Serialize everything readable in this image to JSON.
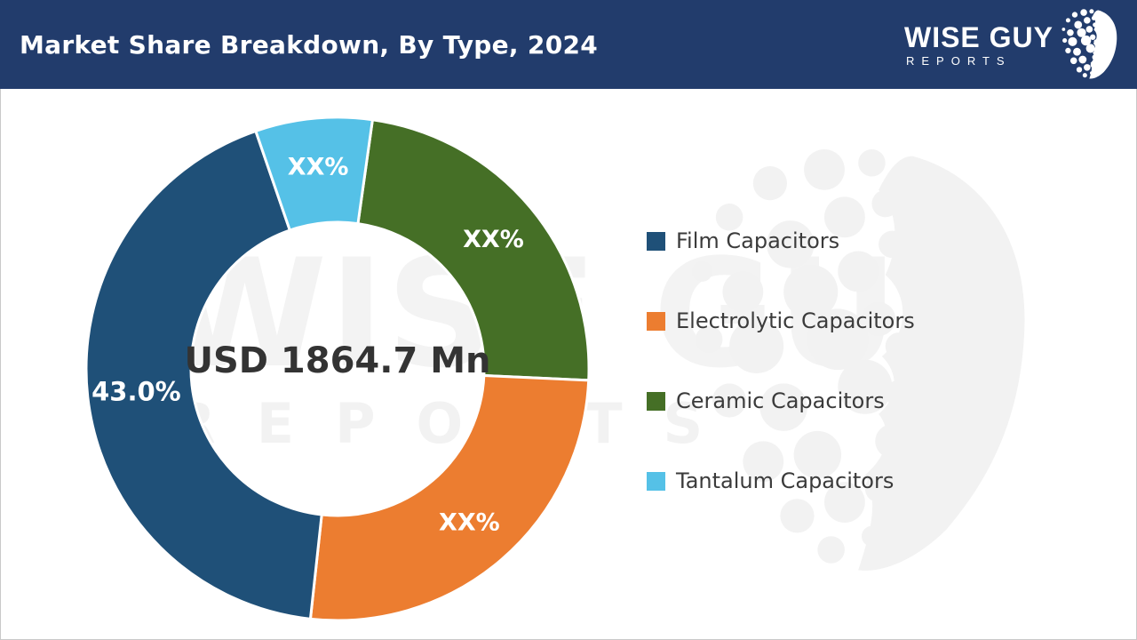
{
  "header": {
    "title": "Market Share Breakdown, By Type, 2024",
    "logo": {
      "line1": "WISE GUY",
      "line2": "REPORTS"
    }
  },
  "watermark": {
    "line1": "WISE GUY",
    "line2": "REPORTS"
  },
  "chart_data": {
    "type": "pie",
    "subtype": "donut",
    "title": "Market Share Breakdown, By Type, 2024",
    "center_label": "USD 1864.7 Mn",
    "rotation_deg": 8,
    "legend_position": "right",
    "segments": [
      {
        "name": "Ceramic Capacitors",
        "label": "XX%",
        "pct": 23.5,
        "color": "#456f26",
        "emph": false
      },
      {
        "name": "Electrolytic Capacitors",
        "label": "XX%",
        "pct": 26.0,
        "color": "#ec7d30",
        "emph": false
      },
      {
        "name": "Film Capacitors",
        "label": "43.0%",
        "pct": 43.0,
        "color": "#1f5078",
        "emph": true
      },
      {
        "name": "Tantalum Capacitors",
        "label": "XX%",
        "pct": 7.5,
        "color": "#55c1e7",
        "emph": false
      }
    ]
  },
  "legend": {
    "items": [
      {
        "label": "Film Capacitors",
        "color": "#1f5078"
      },
      {
        "label": "Electrolytic Capacitors",
        "color": "#ec7d30"
      },
      {
        "label": "Ceramic Capacitors",
        "color": "#456f26"
      },
      {
        "label": "Tantalum Capacitors",
        "color": "#55c1e7"
      }
    ]
  }
}
